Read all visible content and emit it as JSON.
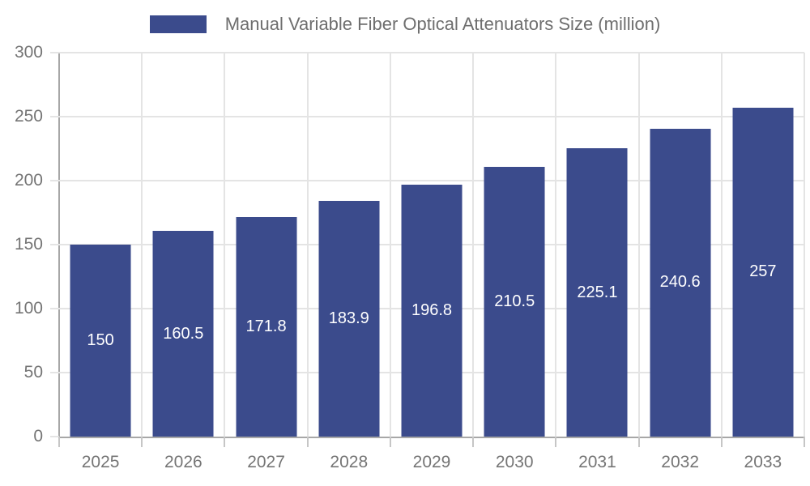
{
  "legend": {
    "label": "Manual Variable Fiber Optical Attenuators Size (million)"
  },
  "colors": {
    "bar": "#3B4B8C",
    "value_label": "#FFFFFF",
    "axis_line": "#A7A7A7",
    "gridline": "#E4E4E4",
    "tick_label": "#757575",
    "legend_text": "#6E6E6E"
  },
  "chart_data": {
    "type": "bar",
    "title": "Manual Variable Fiber Optical Attenuators Size (million)",
    "categories": [
      "2025",
      "2026",
      "2027",
      "2028",
      "2029",
      "2030",
      "2031",
      "2032",
      "2033"
    ],
    "values": [
      150,
      160.5,
      171.8,
      183.9,
      196.8,
      210.5,
      225.1,
      240.6,
      257
    ],
    "value_labels": [
      "150",
      "160.5",
      "171.8",
      "183.9",
      "196.8",
      "210.5",
      "225.1",
      "240.6",
      "257"
    ],
    "xlabel": "",
    "ylabel": "",
    "ylim": [
      0,
      300
    ],
    "yticks": [
      0,
      50,
      100,
      150,
      200,
      250,
      300
    ],
    "grid": true,
    "legend_position": "top",
    "bar_color": "#3B4B8C"
  }
}
